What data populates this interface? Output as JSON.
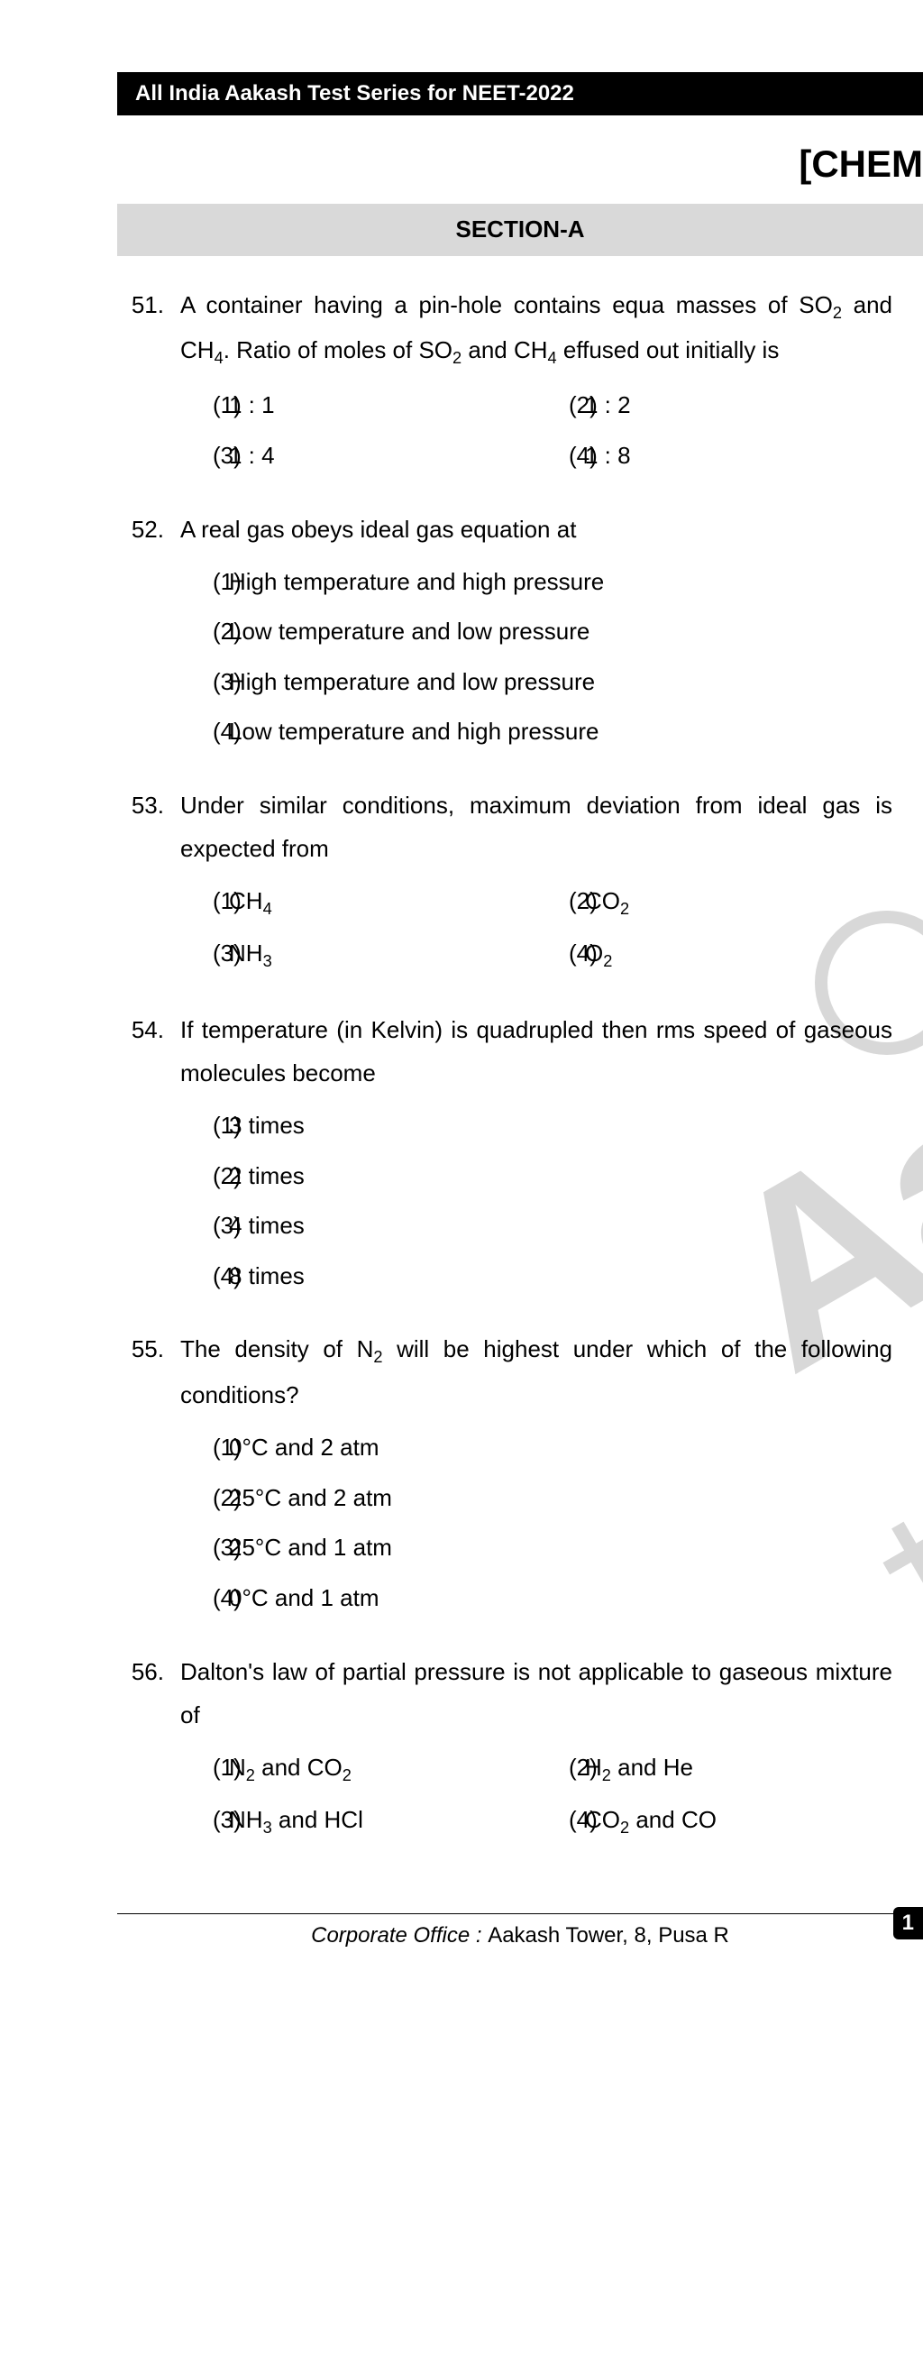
{
  "header": {
    "title": "All India Aakash Test Series for NEET-2022",
    "subject": "[CHEM",
    "section": "SECTION-A"
  },
  "watermark": {
    "text": "Aa",
    "plus": "+"
  },
  "questions": [
    {
      "num": "51.",
      "text_html": "A container having a pin-hole contains equa masses of SO<sub>2</sub> and CH<sub>4</sub>. Ratio of moles of SO<sub>2</sub> and CH<sub>4</sub> effused out initially is",
      "layout": "two-col",
      "options": [
        {
          "label": "(1)",
          "text": "1 : 1"
        },
        {
          "label": "(2)",
          "text": "1 : 2"
        },
        {
          "label": "(3)",
          "text": "1 : 4"
        },
        {
          "label": "(4)",
          "text": "1 : 8"
        }
      ]
    },
    {
      "num": "52.",
      "text_html": "A real gas obeys ideal gas equation at",
      "layout": "one-col",
      "options": [
        {
          "label": "(1)",
          "text": "High temperature and high pressure"
        },
        {
          "label": "(2)",
          "text": "Low temperature and low pressure"
        },
        {
          "label": "(3)",
          "text": "High temperature and low pressure"
        },
        {
          "label": "(4)",
          "text": "Low temperature and high pressure"
        }
      ]
    },
    {
      "num": "53.",
      "text_html": "Under similar conditions, maximum deviation from ideal gas is expected from",
      "layout": "two-col",
      "options": [
        {
          "label": "(1)",
          "text_html": "CH<sub>4</sub>"
        },
        {
          "label": "(2)",
          "text_html": "CO<sub>2</sub>"
        },
        {
          "label": "(3)",
          "text_html": "NH<sub>3</sub>"
        },
        {
          "label": "(4)",
          "text_html": "O<sub>2</sub>"
        }
      ]
    },
    {
      "num": "54.",
      "text_html": "If temperature (in Kelvin) is quadrupled then rms speed of gaseous molecules become",
      "layout": "one-col",
      "options": [
        {
          "label": "(1)",
          "text": "3 times"
        },
        {
          "label": "(2)",
          "text": "2 times"
        },
        {
          "label": "(3)",
          "text": "4 times"
        },
        {
          "label": "(4)",
          "text": "8 times"
        }
      ]
    },
    {
      "num": "55.",
      "text_html": "The density of N<sub>2</sub> will be highest under which of the following conditions?",
      "layout": "one-col",
      "options": [
        {
          "label": "(1)",
          "text": "0°C and 2 atm"
        },
        {
          "label": "(2)",
          "text": "25°C and 2 atm"
        },
        {
          "label": "(3)",
          "text": "25°C and 1 atm"
        },
        {
          "label": "(4)",
          "text": "0°C and 1 atm"
        }
      ]
    },
    {
      "num": "56.",
      "text_html": "Dalton's law of partial pressure is not applicable to gaseous mixture of",
      "layout": "two-col",
      "options": [
        {
          "label": "(1)",
          "text_html": "N<sub>2</sub> and CO<sub>2</sub>"
        },
        {
          "label": "(2)",
          "text_html": "H<sub>2</sub> and He"
        },
        {
          "label": "(3)",
          "text_html": "NH<sub>3</sub> and HCl"
        },
        {
          "label": "(4)",
          "text_html": "CO<sub>2</sub> and CO"
        }
      ]
    }
  ],
  "footer": {
    "label": "Corporate Office : ",
    "address": "Aakash Tower, 8, Pusa R",
    "page_num": "1"
  }
}
